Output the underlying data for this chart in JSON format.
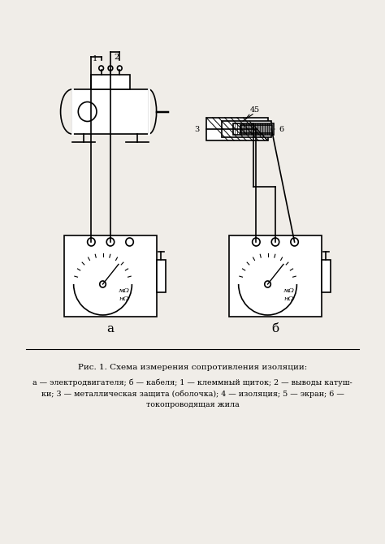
{
  "bg_color": "#f0ede8",
  "fig_width": 4.74,
  "fig_height": 6.7,
  "dpi": 100,
  "caption_title": "Рис. 1. Схема измерения сопротивления изоляции:",
  "caption_body": "а — электродвигателя; б — кабеля; 1 — клеммный щиток; 2 — выводы катуш-\nки; 3 — металлическая защита (оболочка); 4 — изоляция; 5 — экран; 6 —\nтокопроводящая жила",
  "label_a": "а",
  "label_b": "б"
}
